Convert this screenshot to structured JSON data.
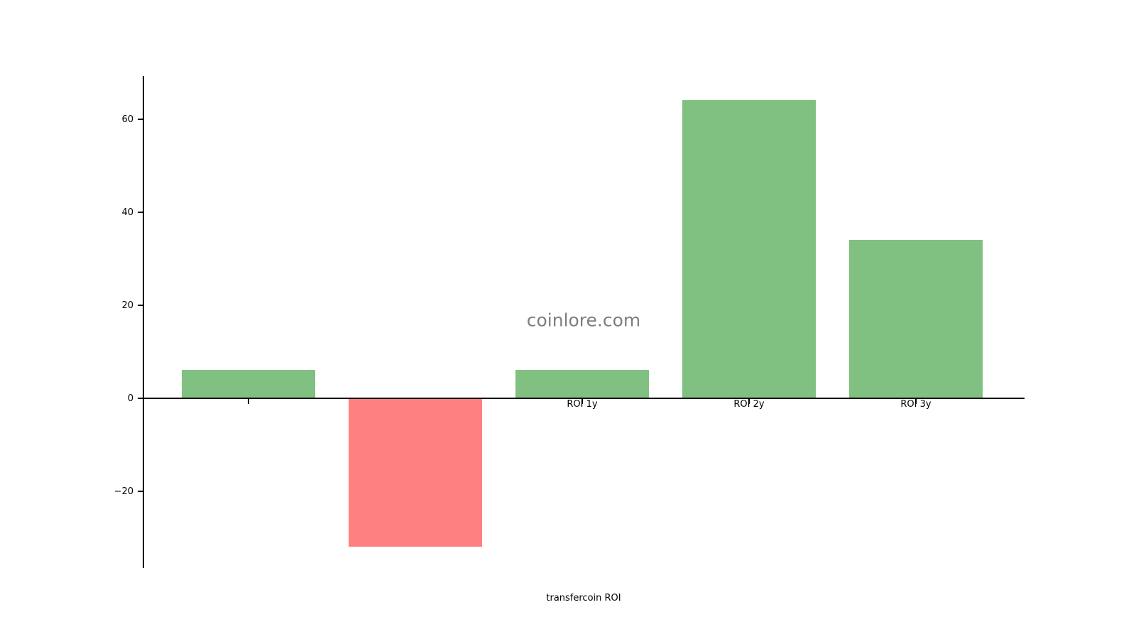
{
  "page": {
    "background_color": "#ffffff"
  },
  "chart_data": {
    "type": "bar",
    "categories": [
      "",
      "",
      "ROI 1y",
      "ROI 2y",
      "ROI 3y"
    ],
    "values": [
      6,
      -32,
      6,
      64,
      34
    ],
    "positive_color": "#80c080",
    "negative_color": "#ff8080",
    "title": "",
    "xlabel": "transfercoin ROI",
    "ylabel": "",
    "yticks": [
      60,
      40,
      20,
      0,
      -20
    ],
    "ytick_labels": [
      "60",
      "40",
      "20",
      "0",
      "−20"
    ],
    "ylim": [
      -36.6,
      69.2
    ],
    "grid": false,
    "legend": null,
    "watermark": "coinlore.com",
    "axis_color": "#000000",
    "tick_label_color": "#000000",
    "watermark_color": "#7e7e7e"
  }
}
